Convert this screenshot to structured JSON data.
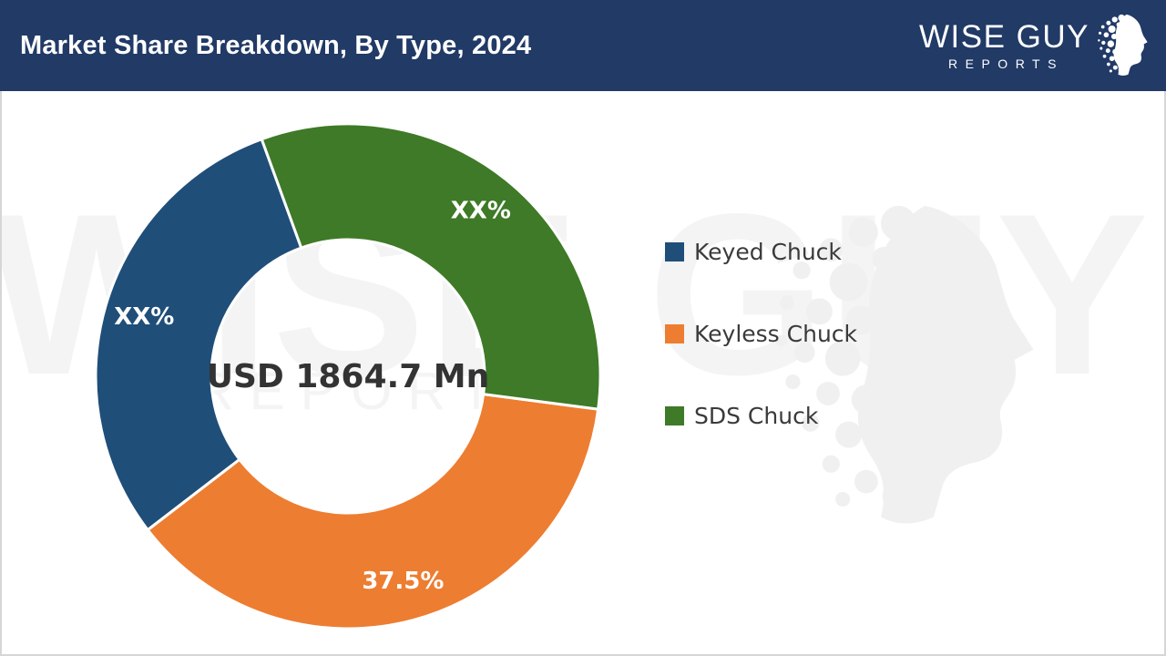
{
  "header": {
    "title": "Market Share Breakdown, By Type, 2024",
    "logo_line1": "WISE GUY",
    "logo_line2": "REPORTS",
    "bg_color": "#213a66"
  },
  "watermark": {
    "line1": "WISE GUY",
    "line2": "REPORTS"
  },
  "chart_data": {
    "type": "pie",
    "subtype": "donut",
    "title": "Market Share Breakdown, By Type, 2024",
    "center_label": "USD 1864.7 Mn",
    "legend_position": "right",
    "label_color": "#ffffff",
    "segments": [
      {
        "label": "Keyed Chuck",
        "display_value": "XX%",
        "approx_pct": 29.9,
        "start_deg": 232.5,
        "sweep_deg": 107.5,
        "color": "#1f4e79"
      },
      {
        "label": "Keyless Chuck",
        "display_value": "37.5%",
        "approx_pct": 37.5,
        "start_deg": 97.5,
        "sweep_deg": 135.0,
        "color": "#ed7d31"
      },
      {
        "label": "SDS Chuck",
        "display_value": "XX%",
        "approx_pct": 32.6,
        "start_deg": 340.0,
        "sweep_deg": 117.5,
        "color": "#3e7a27"
      }
    ]
  }
}
